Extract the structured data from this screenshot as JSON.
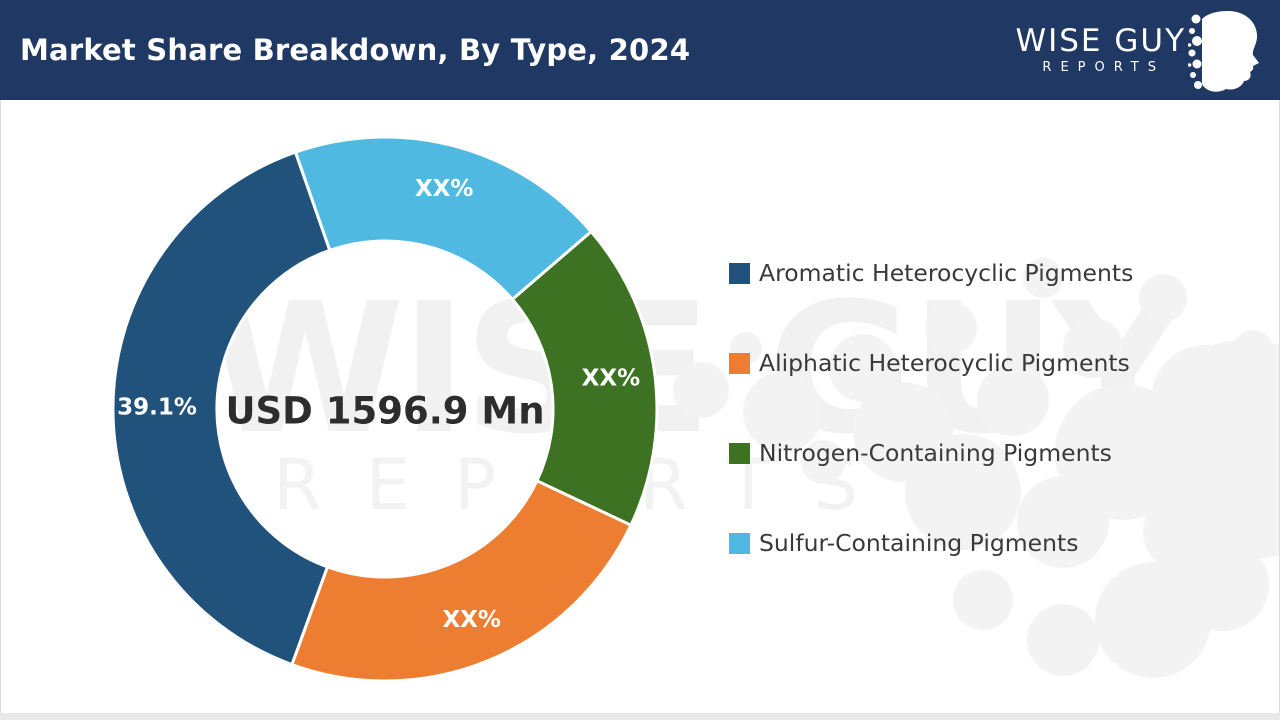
{
  "header": {
    "title": "Market Share Breakdown, By Type, 2024",
    "bg_color": "#203864",
    "logo": {
      "name": "WISE GUY",
      "subtitle": "REPORTS"
    }
  },
  "watermark": {
    "line1": "WISE GUY",
    "line2": "REPORTS"
  },
  "chart_data": {
    "type": "pie",
    "subtype": "donut",
    "title": "Market Share Breakdown, By Type, 2024",
    "center_total": "USD 1596.9 Mn",
    "rotation_deg_cw_from_top": 200,
    "legend_position": "right",
    "segments": [
      {
        "name": "Aromatic Heterocyclic Pigments",
        "display_label": "39.1%",
        "value_pct": 39.1,
        "span_deg": 140.8,
        "color": "#20527C"
      },
      {
        "name": "Sulfur-Containing Pigments",
        "display_label": "XX%",
        "value_pct": null,
        "span_deg": 68.5,
        "color": "#4FB9E2"
      },
      {
        "name": "Nitrogen-Containing Pigments",
        "display_label": "XX%",
        "value_pct": null,
        "span_deg": 66.0,
        "color": "#3E7223"
      },
      {
        "name": "Aliphatic Heterocyclic Pigments",
        "display_label": "XX%",
        "value_pct": null,
        "span_deg": 84.7,
        "color": "#ED7D31"
      }
    ]
  },
  "legend": {
    "items": [
      {
        "label": "Aromatic Heterocyclic Pigments",
        "color": "#20527C"
      },
      {
        "label": "Aliphatic Heterocyclic Pigments",
        "color": "#ED7D31"
      },
      {
        "label": "Nitrogen-Containing Pigments",
        "color": "#3E7223"
      },
      {
        "label": "Sulfur-Containing Pigments",
        "color": "#4FB9E2"
      }
    ]
  }
}
